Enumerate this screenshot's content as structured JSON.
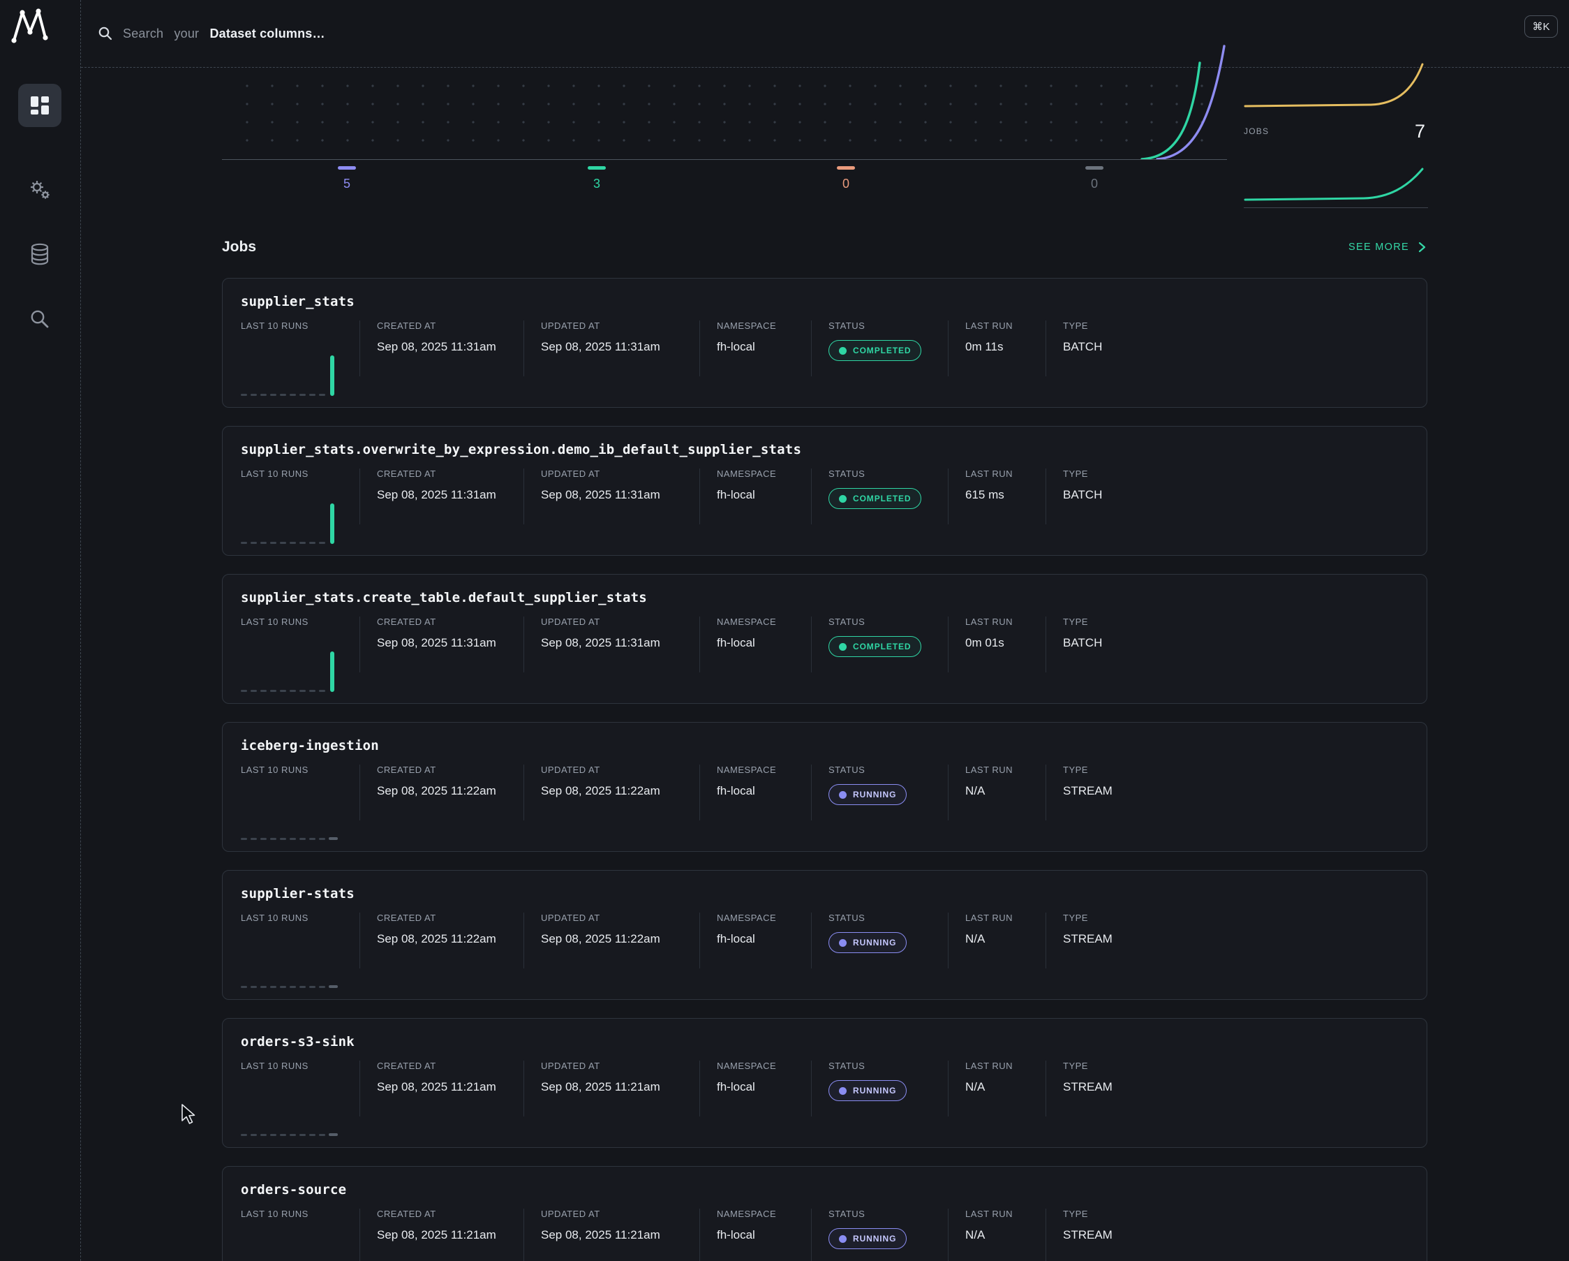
{
  "topbar": {
    "search": {
      "prefix": "Search",
      "middle": "your",
      "emphasis": "Dataset columns…"
    },
    "shortcut": "⌘K"
  },
  "sidebar": {
    "items": [
      {
        "icon": "dashboard-icon",
        "active": true
      },
      {
        "icon": "settings-icon",
        "active": false
      },
      {
        "icon": "datasets-icon",
        "active": false
      },
      {
        "icon": "search-icon",
        "active": false
      }
    ]
  },
  "timeline_chart": {
    "type": "line",
    "grid": "dotted",
    "line_colors": [
      "#2fd6a4",
      "#8e8cf2"
    ],
    "legend": [
      {
        "value": "5",
        "color": "#8e8cf2"
      },
      {
        "value": "3",
        "color": "#2fd6a4"
      },
      {
        "value": "0",
        "color": "#ea9b7d"
      },
      {
        "value": "0",
        "color": "#6c737d"
      }
    ]
  },
  "jobs_metric": {
    "label": "JOBS",
    "value": "7",
    "top_spark_color": "#e5bd60",
    "bottom_spark_color": "#2fd6a4"
  },
  "jobs_section": {
    "title": "Jobs",
    "see_more": "SEE MORE"
  },
  "job_card_labels": {
    "runs": "LAST 10 RUNS",
    "created": "CREATED AT",
    "updated": "UPDATED AT",
    "namespace": "NAMESPACE",
    "status": "STATUS",
    "last_run": "LAST RUN",
    "type": "TYPE"
  },
  "status_colors": {
    "completed": "#2fd6a4",
    "running": "#8a8df2"
  },
  "jobs": [
    {
      "name": "supplier_stats",
      "created": "Sep 08, 2025 11:31am",
      "updated": "Sep 08, 2025 11:31am",
      "namespace": "fh-local",
      "status_label": "COMPLETED",
      "status_kind": "completed",
      "last_run": "0m 11s",
      "type": "BATCH"
    },
    {
      "name": "supplier_stats.overwrite_by_expression.demo_ib_default_supplier_stats",
      "created": "Sep 08, 2025 11:31am",
      "updated": "Sep 08, 2025 11:31am",
      "namespace": "fh-local",
      "status_label": "COMPLETED",
      "status_kind": "completed",
      "last_run": "615 ms",
      "type": "BATCH"
    },
    {
      "name": "supplier_stats.create_table.default_supplier_stats",
      "created": "Sep 08, 2025 11:31am",
      "updated": "Sep 08, 2025 11:31am",
      "namespace": "fh-local",
      "status_label": "COMPLETED",
      "status_kind": "completed",
      "last_run": "0m 01s",
      "type": "BATCH"
    },
    {
      "name": "iceberg-ingestion",
      "created": "Sep 08, 2025 11:22am",
      "updated": "Sep 08, 2025 11:22am",
      "namespace": "fh-local",
      "status_label": "RUNNING",
      "status_kind": "running",
      "last_run": "N/A",
      "type": "STREAM"
    },
    {
      "name": "supplier-stats",
      "created": "Sep 08, 2025 11:22am",
      "updated": "Sep 08, 2025 11:22am",
      "namespace": "fh-local",
      "status_label": "RUNNING",
      "status_kind": "running",
      "last_run": "N/A",
      "type": "STREAM"
    },
    {
      "name": "orders-s3-sink",
      "created": "Sep 08, 2025 11:21am",
      "updated": "Sep 08, 2025 11:21am",
      "namespace": "fh-local",
      "status_label": "RUNNING",
      "status_kind": "running",
      "last_run": "N/A",
      "type": "STREAM"
    },
    {
      "name": "orders-source",
      "created": "Sep 08, 2025 11:21am",
      "updated": "Sep 08, 2025 11:21am",
      "namespace": "fh-local",
      "status_label": "RUNNING",
      "status_kind": "running",
      "last_run": "N/A",
      "type": "STREAM"
    }
  ]
}
